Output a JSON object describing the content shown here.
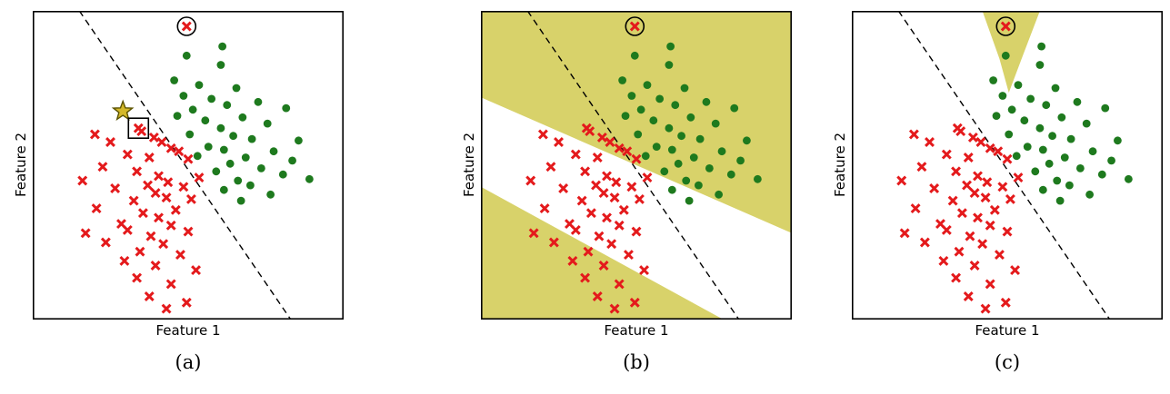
{
  "figure": {
    "xlabel": "Feature 1",
    "ylabel": "Feature 2"
  },
  "colors": {
    "class_red": "#e41a1c",
    "class_green": "#1e7a1e",
    "region": "#d8d26a",
    "star_fill": "#d4b82a",
    "star_edge": "#5a5200",
    "boundary": "#000000",
    "border": "#000000",
    "background": "#ffffff"
  },
  "chart_data": {
    "type": "scatter",
    "xlabel": "Feature 1",
    "ylabel": "Feature 2",
    "xlim": [
      0,
      10
    ],
    "ylim": [
      0,
      10
    ],
    "grid": false,
    "legend": "none",
    "decision_boundary": {
      "style": "dashed",
      "color": "#000000",
      "from": [
        1.5,
        10
      ],
      "to": [
        8.3,
        0
      ]
    },
    "outlier": {
      "x": 4.95,
      "y": 9.5,
      "marker": "x",
      "color": "#e41a1c",
      "ring": true
    },
    "region_color": "#d8d26a",
    "classes": [
      {
        "name": "red-cross-class",
        "marker": "x",
        "color": "#e41a1c",
        "points": [
          [
            2.0,
            6.0
          ],
          [
            1.7,
            2.8
          ],
          [
            2.5,
            5.75
          ],
          [
            3.4,
            6.2
          ],
          [
            3.5,
            6.1
          ],
          [
            3.9,
            5.9
          ],
          [
            4.15,
            5.75
          ],
          [
            4.45,
            5.55
          ],
          [
            3.05,
            5.35
          ],
          [
            3.75,
            5.25
          ],
          [
            4.7,
            5.45
          ],
          [
            5.0,
            5.2
          ],
          [
            2.25,
            4.95
          ],
          [
            3.35,
            4.8
          ],
          [
            4.05,
            4.65
          ],
          [
            4.35,
            4.45
          ],
          [
            3.7,
            4.35
          ],
          [
            2.65,
            4.25
          ],
          [
            4.85,
            4.3
          ],
          [
            5.35,
            4.6
          ],
          [
            3.95,
            4.1
          ],
          [
            4.3,
            3.95
          ],
          [
            3.25,
            3.85
          ],
          [
            5.1,
            3.9
          ],
          [
            2.05,
            3.6
          ],
          [
            4.6,
            3.55
          ],
          [
            3.55,
            3.45
          ],
          [
            4.05,
            3.3
          ],
          [
            1.6,
            4.5
          ],
          [
            2.85,
            3.1
          ],
          [
            4.45,
            3.05
          ],
          [
            3.05,
            2.9
          ],
          [
            5.0,
            2.85
          ],
          [
            3.8,
            2.7
          ],
          [
            2.35,
            2.5
          ],
          [
            4.2,
            2.45
          ],
          [
            3.45,
            2.2
          ],
          [
            4.75,
            2.1
          ],
          [
            2.95,
            1.9
          ],
          [
            3.95,
            1.75
          ],
          [
            5.25,
            1.6
          ],
          [
            3.35,
            1.35
          ],
          [
            4.45,
            1.15
          ],
          [
            3.75,
            0.75
          ],
          [
            4.95,
            0.55
          ],
          [
            4.3,
            0.35
          ]
        ]
      },
      {
        "name": "green-dot-class",
        "marker": "dot",
        "color": "#1e7a1e",
        "points": [
          [
            4.95,
            8.55
          ],
          [
            6.1,
            8.85
          ],
          [
            6.05,
            8.25
          ],
          [
            4.55,
            7.75
          ],
          [
            5.35,
            7.6
          ],
          [
            6.55,
            7.5
          ],
          [
            4.85,
            7.25
          ],
          [
            5.75,
            7.15
          ],
          [
            7.25,
            7.05
          ],
          [
            6.25,
            6.95
          ],
          [
            5.15,
            6.8
          ],
          [
            8.15,
            6.85
          ],
          [
            4.65,
            6.6
          ],
          [
            6.75,
            6.55
          ],
          [
            5.55,
            6.45
          ],
          [
            7.55,
            6.35
          ],
          [
            6.05,
            6.2
          ],
          [
            5.05,
            6.0
          ],
          [
            6.45,
            5.95
          ],
          [
            7.05,
            5.85
          ],
          [
            8.55,
            5.8
          ],
          [
            5.65,
            5.6
          ],
          [
            6.15,
            5.5
          ],
          [
            7.75,
            5.45
          ],
          [
            5.3,
            5.3
          ],
          [
            6.85,
            5.25
          ],
          [
            6.35,
            5.05
          ],
          [
            7.35,
            4.9
          ],
          [
            5.9,
            4.8
          ],
          [
            8.05,
            4.7
          ],
          [
            6.6,
            4.5
          ],
          [
            7.0,
            4.35
          ],
          [
            6.15,
            4.2
          ],
          [
            7.65,
            4.05
          ],
          [
            6.7,
            3.85
          ],
          [
            8.35,
            5.15
          ],
          [
            8.9,
            4.55
          ]
        ]
      }
    ],
    "panels": [
      {
        "id": "a",
        "caption": "(a)",
        "regions": [],
        "annotations": [
          {
            "type": "star",
            "x": 2.9,
            "y": 6.75
          },
          {
            "type": "box",
            "x": 3.4,
            "y": 6.2
          }
        ]
      },
      {
        "id": "b",
        "caption": "(b)",
        "regions": [
          [
            [
              0,
              10
            ],
            [
              10,
              10
            ],
            [
              10,
              2.8
            ],
            [
              0,
              7.2
            ]
          ],
          [
            [
              0,
              4.3
            ],
            [
              7.8,
              0
            ],
            [
              0,
              0
            ]
          ]
        ],
        "annotations": []
      },
      {
        "id": "c",
        "caption": "(c)",
        "regions": [
          [
            [
              4.2,
              10
            ],
            [
              6.05,
              10
            ],
            [
              5.5,
              8.55
            ],
            [
              5.05,
              7.35
            ],
            [
              4.75,
              8.45
            ]
          ]
        ],
        "annotations": []
      }
    ]
  }
}
